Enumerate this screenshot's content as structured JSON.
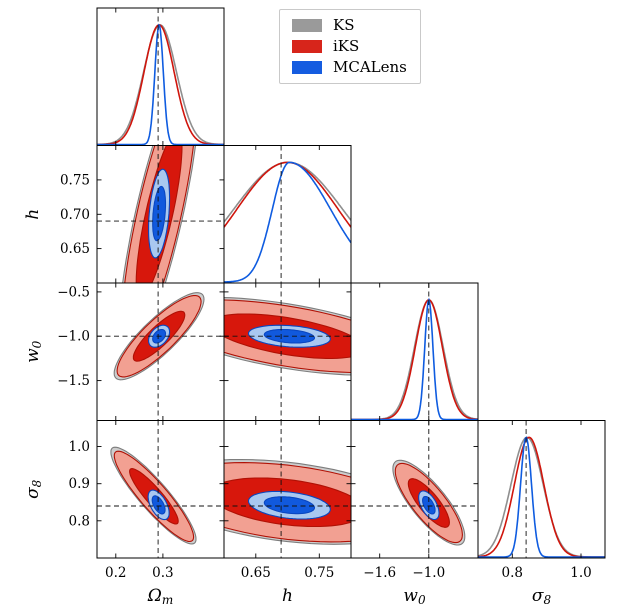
{
  "legend": {
    "items": [
      {
        "label": "KS",
        "color": "#9a9a9a"
      },
      {
        "label": "iKS",
        "color": "#d7251b"
      },
      {
        "label": "MCALens",
        "color": "#155ce0"
      }
    ]
  },
  "chart_data": {
    "type": "corner_plot",
    "description": "Triangle (corner) plot of posterior constraints on cosmological parameters comparing KS, iKS and MCALens mass-mapping methods",
    "levels": [
      1.52,
      2.48
    ],
    "parameters": [
      {
        "id": "omega_m",
        "label_main": "Ω",
        "label_sub": "m",
        "range": [
          0.16,
          0.43
        ],
        "fiducial": 0.29,
        "ticks_x": {
          "values": [
            0.2,
            0.3
          ],
          "labels": [
            "0.2",
            "0.3"
          ]
        },
        "ticks_y": {
          "values": [],
          "labels": []
        }
      },
      {
        "id": "h",
        "label_main": "h",
        "label_sub": "",
        "range": [
          0.6,
          0.8
        ],
        "fiducial": 0.69,
        "ticks_x": {
          "values": [
            0.65,
            0.75
          ],
          "labels": [
            "0.65",
            "0.75"
          ]
        },
        "ticks_y": {
          "values": [
            0.65,
            0.7,
            0.75
          ],
          "labels": [
            "0.65",
            "0.70",
            "0.75"
          ]
        }
      },
      {
        "id": "w0",
        "label_main": "w",
        "label_sub": "0",
        "range": [
          -1.95,
          -0.4
        ],
        "fiducial": -1.0,
        "ticks_x": {
          "values": [
            -1.6,
            -1.0
          ],
          "labels": [
            "−1.6",
            "−1.0"
          ]
        },
        "ticks_y": {
          "values": [
            -1.5,
            -1.0,
            -0.5
          ],
          "labels": [
            "−1.5",
            "−1.0",
            "−0.5"
          ]
        }
      },
      {
        "id": "sigma8",
        "label_main": "σ",
        "label_sub": "8",
        "range": [
          0.7,
          1.07
        ],
        "fiducial": 0.84,
        "ticks_x": {
          "values": [
            0.8,
            1.0
          ],
          "labels": [
            "0.8",
            "1.0"
          ]
        },
        "ticks_y": {
          "values": [
            0.8,
            0.9,
            1.0
          ],
          "labels": [
            "0.8",
            "0.9",
            "1.0"
          ]
        }
      }
    ],
    "series": [
      {
        "name": "KS",
        "color": "#8f8f8f",
        "edge": "#7d7d7d",
        "fill_1s": "#a3a3a3",
        "fill_2s": "#cdcdcd"
      },
      {
        "name": "iKS",
        "color": "#d0150c",
        "edge": "#b01105",
        "fill_1s": "#d7170c",
        "fill_2s": "#f2a092"
      },
      {
        "name": "MCALens",
        "color": "#0f5ce0",
        "edge": "#0a47c0",
        "fill_1s": "#1159dd",
        "fill_2s": "#a9c8f0"
      }
    ],
    "marginals": {
      "omega_m": [
        {
          "series": "KS",
          "mean": 0.294,
          "sigma_l": 0.035,
          "sigma_r": 0.035
        },
        {
          "series": "iKS",
          "mean": 0.292,
          "sigma_l": 0.032,
          "sigma_r": 0.032
        },
        {
          "series": "MCALens",
          "mean": 0.292,
          "sigma_l": 0.009,
          "sigma_r": 0.009
        }
      ],
      "h": [
        {
          "series": "KS",
          "mean": 0.701,
          "sigma_l": 0.086,
          "sigma_r": 0.086
        },
        {
          "series": "iKS",
          "mean": 0.7,
          "sigma_l": 0.08,
          "sigma_r": 0.08
        },
        {
          "series": "MCALens",
          "mean": 0.703,
          "sigma_l": 0.027,
          "sigma_r": 0.065
        }
      ],
      "w0": [
        {
          "series": "KS",
          "mean": -1.0,
          "sigma_l": 0.175,
          "sigma_r": 0.175
        },
        {
          "series": "iKS",
          "mean": -1.0,
          "sigma_l": 0.165,
          "sigma_r": 0.165
        },
        {
          "series": "MCALens",
          "mean": -1.0,
          "sigma_l": 0.05,
          "sigma_r": 0.05
        }
      ],
      "sigma8": [
        {
          "series": "KS",
          "mean": 0.843,
          "sigma_l": 0.047,
          "sigma_r": 0.047
        },
        {
          "series": "iKS",
          "mean": 0.849,
          "sigma_l": 0.043,
          "sigma_r": 0.043
        },
        {
          "series": "MCALens",
          "mean": 0.84,
          "sigma_l": 0.016,
          "sigma_r": 0.016
        }
      ]
    },
    "contours": [
      {
        "x": "omega_m",
        "y": "h",
        "ellipses": [
          {
            "series": "KS",
            "cx": 0.292,
            "cy": 0.7,
            "sx": 0.0345,
            "sy": 0.086,
            "rho": 0.8
          },
          {
            "series": "iKS",
            "cx": 0.292,
            "cy": 0.7,
            "sx": 0.032,
            "sy": 0.08,
            "rho": 0.8
          },
          {
            "series": "MCALens",
            "cx": 0.292,
            "cy": 0.701,
            "sx": 0.009,
            "sy": 0.026,
            "rho": 0.35
          }
        ]
      },
      {
        "x": "omega_m",
        "y": "w0",
        "ellipses": [
          {
            "series": "KS",
            "cx": 0.292,
            "cy": -1.0,
            "sx": 0.0385,
            "sy": 0.198,
            "rho": 0.85
          },
          {
            "series": "iKS",
            "cx": 0.292,
            "cy": -1.0,
            "sx": 0.036,
            "sy": 0.185,
            "rho": 0.85
          },
          {
            "series": "MCALens",
            "cx": 0.292,
            "cy": -1.0,
            "sx": 0.009,
            "sy": 0.05,
            "rho": 0.4
          }
        ]
      },
      {
        "x": "omega_m",
        "y": "sigma8",
        "ellipses": [
          {
            "series": "KS",
            "cx": 0.28,
            "cy": 0.868,
            "sx": 0.0365,
            "sy": 0.0525,
            "rho": -0.9
          },
          {
            "series": "iKS",
            "cx": 0.281,
            "cy": 0.866,
            "sx": 0.034,
            "sy": 0.049,
            "rho": -0.9
          },
          {
            "series": "MCALens",
            "cx": 0.291,
            "cy": 0.843,
            "sx": 0.009,
            "sy": 0.016,
            "rho": -0.55
          }
        ]
      },
      {
        "x": "h",
        "y": "w0",
        "ellipses": [
          {
            "series": "KS",
            "cx": 0.7,
            "cy": -1.0,
            "sx": 0.086,
            "sy": 0.177,
            "rho": -0.55
          },
          {
            "series": "iKS",
            "cx": 0.7,
            "cy": -1.0,
            "sx": 0.08,
            "sy": 0.165,
            "rho": -0.55
          },
          {
            "series": "MCALens",
            "cx": 0.703,
            "cy": -1.0,
            "sx": 0.026,
            "sy": 0.05,
            "rho": -0.25
          }
        ]
      },
      {
        "x": "h",
        "y": "sigma8",
        "ellipses": [
          {
            "series": "KS",
            "cx": 0.7,
            "cy": 0.851,
            "sx": 0.086,
            "sy": 0.046,
            "rho": -0.35
          },
          {
            "series": "iKS",
            "cx": 0.7,
            "cy": 0.85,
            "sx": 0.08,
            "sy": 0.043,
            "rho": -0.35
          },
          {
            "series": "MCALens",
            "cx": 0.703,
            "cy": 0.842,
            "sx": 0.026,
            "sy": 0.015,
            "rho": -0.3
          }
        ]
      },
      {
        "x": "w0",
        "y": "sigma8",
        "ellipses": [
          {
            "series": "KS",
            "cx": -1.0,
            "cy": 0.849,
            "sx": 0.177,
            "sy": 0.046,
            "rho": -0.8
          },
          {
            "series": "iKS",
            "cx": -1.0,
            "cy": 0.848,
            "sx": 0.165,
            "sy": 0.043,
            "rho": -0.8
          },
          {
            "series": "MCALens",
            "cx": -1.0,
            "cy": 0.842,
            "sx": 0.05,
            "sy": 0.0155,
            "rho": -0.55
          }
        ]
      }
    ]
  }
}
